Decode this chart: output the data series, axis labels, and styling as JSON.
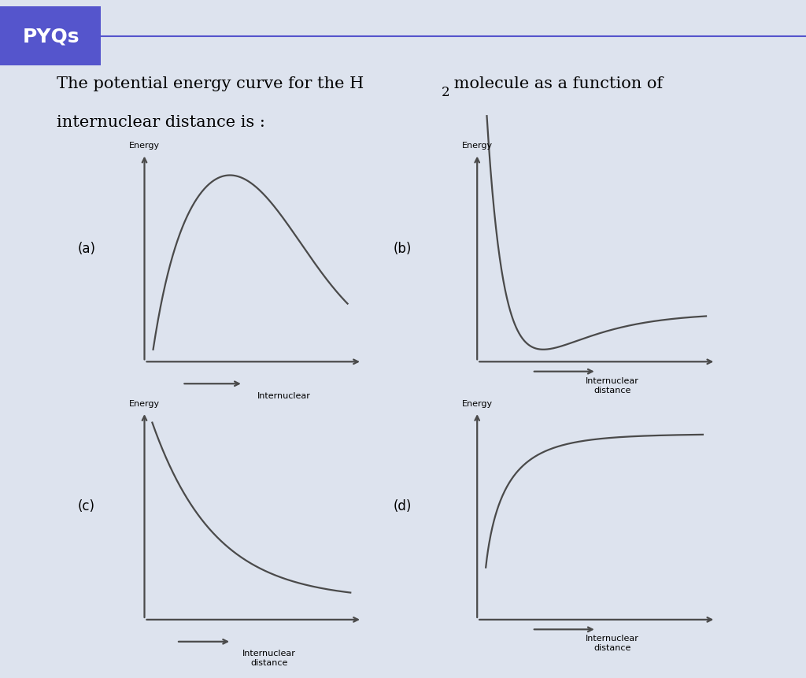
{
  "background_color": "#dde3ee",
  "pyqs_color": "#5555cc",
  "pyqs_text": "PYQs",
  "line_color": "#4a4a4a",
  "axis_color": "#4a4a4a",
  "label_fontsize": 8,
  "subplot_label_fontsize": 12,
  "header_fontsize": 15,
  "title_line1_pre": "The potential energy curve for the H",
  "title_sub": "2",
  "title_line1_post": " molecule as a function of",
  "title_line2": "internuclear distance is :"
}
